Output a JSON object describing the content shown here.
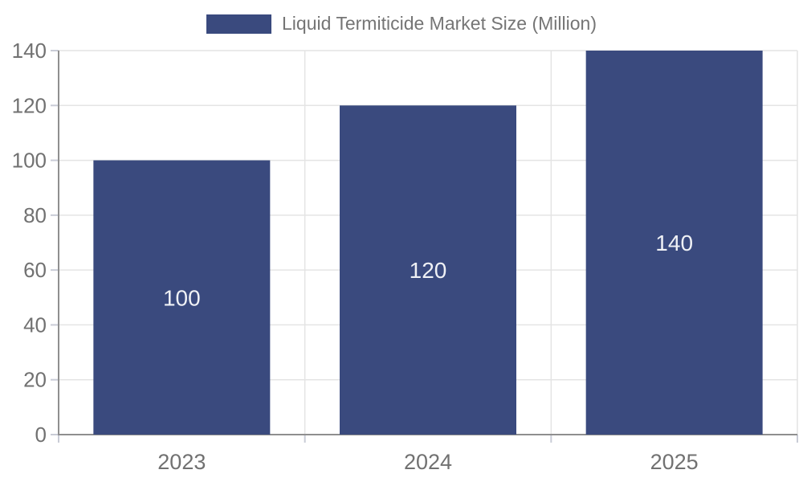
{
  "legend": {
    "label": "Liquid Termiticide Market Size (Million)",
    "swatch_color": "#3a4a7e"
  },
  "chart_data": {
    "type": "bar",
    "title": "Liquid Termiticide Market Size (Million)",
    "categories": [
      "2023",
      "2024",
      "2025"
    ],
    "values": [
      100,
      120,
      140
    ],
    "xlabel": "",
    "ylabel": "",
    "ylim": [
      0,
      140
    ],
    "yticks": [
      0,
      20,
      40,
      60,
      80,
      100,
      120,
      140
    ],
    "grid": true,
    "legend_position": "top-center",
    "bar_color": "#3a4a7e",
    "value_label_color": "#eff1f5"
  },
  "colors": {
    "background": "#ffffff",
    "grid_line": "#e4e4e4",
    "axis_line": "#8f8f8f",
    "tick_mark": "#c9ccd6",
    "tick_label": "#717171",
    "legend_text": "#757575"
  }
}
